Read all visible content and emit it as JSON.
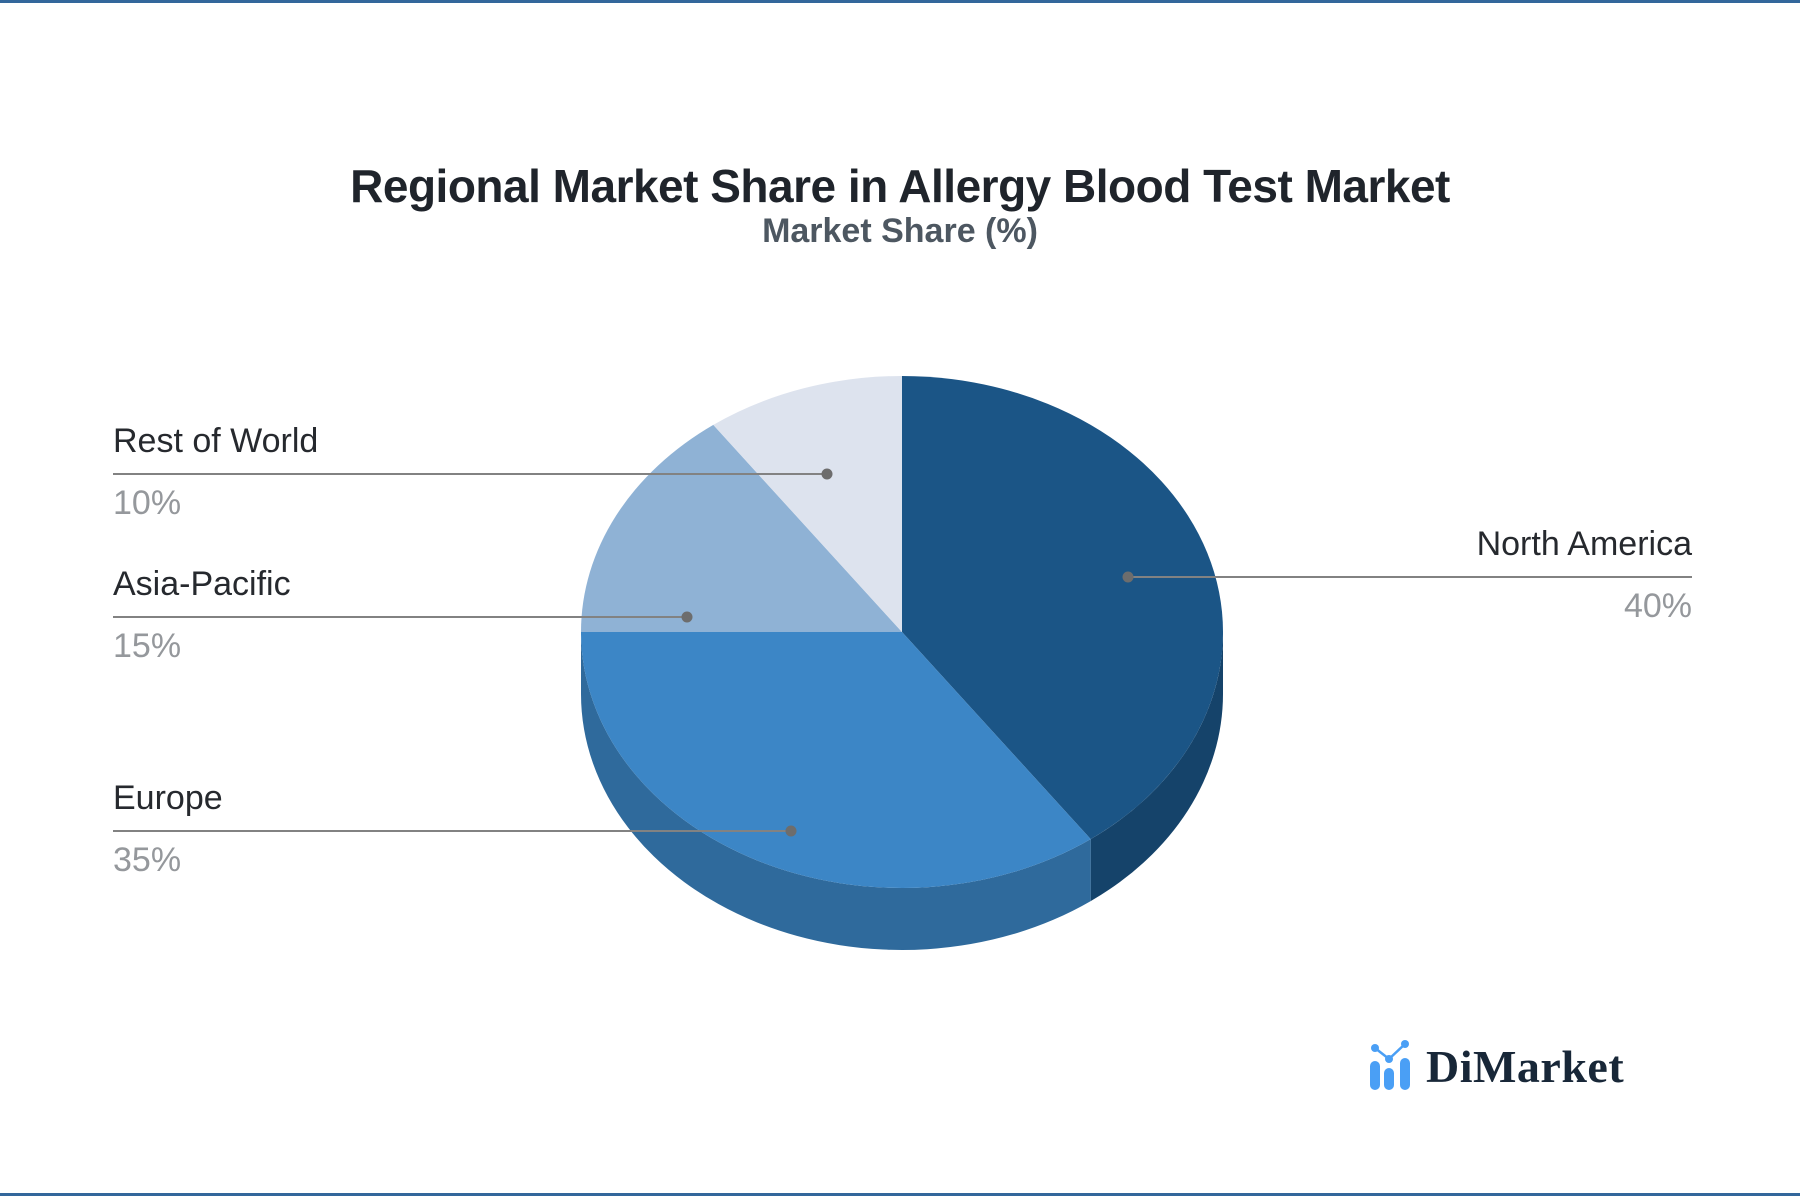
{
  "chart_data": {
    "type": "pie",
    "title": "Regional Market Share in Allergy Blood Test Market",
    "subtitle": "Market Share (%)",
    "unit": "%",
    "style": "3d-extruded",
    "start_angle": "top",
    "direction": "clockwise",
    "legend_position": "callout-labels",
    "series": [
      {
        "name": "North America",
        "value": 40,
        "label": "40%",
        "color": "#1b5586"
      },
      {
        "name": "Europe",
        "value": 35,
        "label": "35%",
        "color": "#3c86c6"
      },
      {
        "name": "Asia-Pacific",
        "value": 15,
        "label": "15%",
        "color": "#8fb2d5"
      },
      {
        "name": "Rest of World",
        "value": 10,
        "label": "10%",
        "color": "#dde3ee"
      }
    ],
    "connector_color": "#828282",
    "connector_dot_color": "#6d6d6d"
  },
  "branding": {
    "logo_text": "DiMarket",
    "logo_icon": "bar-line-chart-icon",
    "logo_bar_color": "#4a9ff5",
    "logo_text_color": "#182738"
  }
}
